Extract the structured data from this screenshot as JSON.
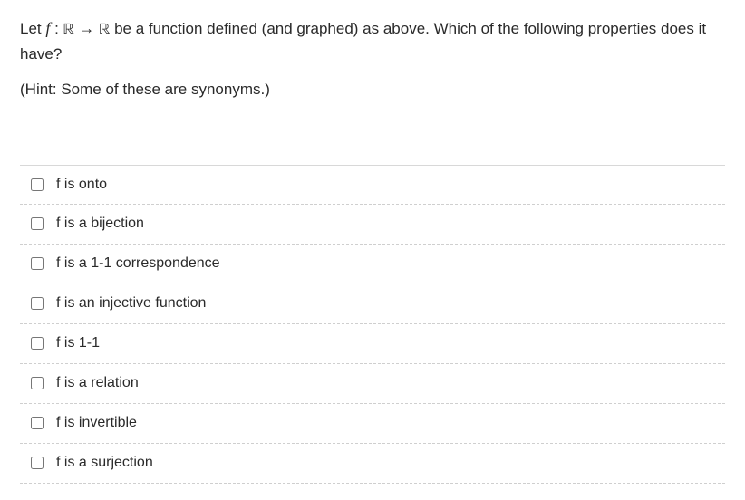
{
  "question": {
    "prefix": "Let ",
    "math_f": "f",
    "colon": " : ",
    "math_R1": "ℝ",
    "arrow": " → ",
    "math_R2": "ℝ",
    "suffix": "  be a function defined (and graphed) as above.  Which of the following properties does it have?"
  },
  "hint": "(Hint:  Some of these are synonyms.)",
  "options": [
    {
      "label": "f is onto",
      "checked": false
    },
    {
      "label": "f is a bijection",
      "checked": false
    },
    {
      "label": "f is a 1-1 correspondence",
      "checked": false
    },
    {
      "label": "f is an injective function",
      "checked": false
    },
    {
      "label": "f is 1-1",
      "checked": false
    },
    {
      "label": "f is a relation",
      "checked": false
    },
    {
      "label": "f is invertible",
      "checked": false
    },
    {
      "label": "f is a surjection",
      "checked": false
    }
  ],
  "style": {
    "font_size_body": 17,
    "font_size_option": 16,
    "text_color": "#2a2a2a",
    "border_color_solid": "#d8d8d8",
    "border_color_dashed": "#cfcfcf",
    "background": "#ffffff",
    "row_padding_v": 11,
    "checkbox_size": 14
  }
}
